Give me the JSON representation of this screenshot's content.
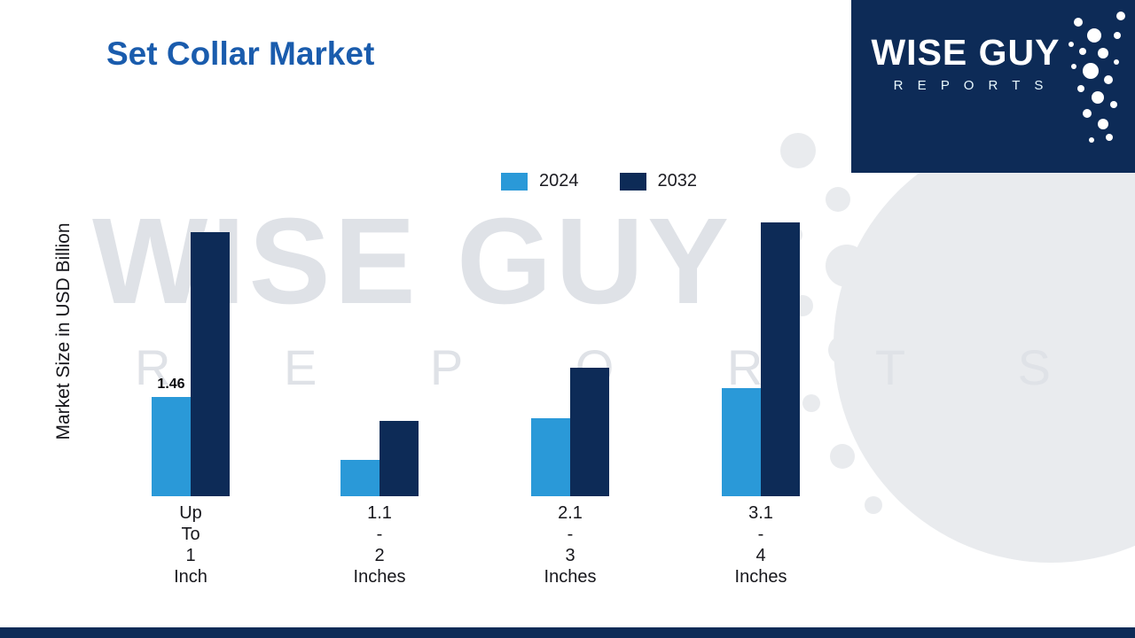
{
  "title": "Set Collar Market",
  "brand": {
    "logo_line1": "WISE GUY",
    "logo_line2": "R E P O R T S"
  },
  "watermark": {
    "line1": "WISE GUY",
    "line2": "R E P O R T S"
  },
  "legend": {
    "items": [
      {
        "label": "2024",
        "color": "#2a99d8"
      },
      {
        "label": "2032",
        "color": "#0d2b57"
      }
    ]
  },
  "chart_data": {
    "type": "bar",
    "title": "Set Collar Market",
    "ylabel": "Market Size in USD Billion",
    "xlabel": "",
    "categories": [
      "Up\nTo\n1\nInch",
      "1.1\n-\n2\nInches",
      "2.1\n-\n3\nInches",
      "3.1\n-\n4\nInches"
    ],
    "series": [
      {
        "name": "2024",
        "color": "#2a99d8",
        "values": [
          1.46,
          0.53,
          1.15,
          1.59
        ]
      },
      {
        "name": "2032",
        "color": "#0d2b57",
        "values": [
          3.88,
          1.11,
          1.89,
          4.03
        ]
      }
    ],
    "bar_labels": [
      {
        "series_index": 0,
        "category_index": 0,
        "text": "1.46"
      }
    ],
    "ylim": [
      0,
      4.2
    ],
    "grid": false,
    "legend_position": "top"
  },
  "colors": {
    "title_blue": "#1a5cad",
    "navy": "#0d2b57",
    "light_blue": "#2a99d8",
    "watermark_gray": "#dfe2e7",
    "blob_gray": "#e9ebee",
    "background": "#ffffff"
  }
}
